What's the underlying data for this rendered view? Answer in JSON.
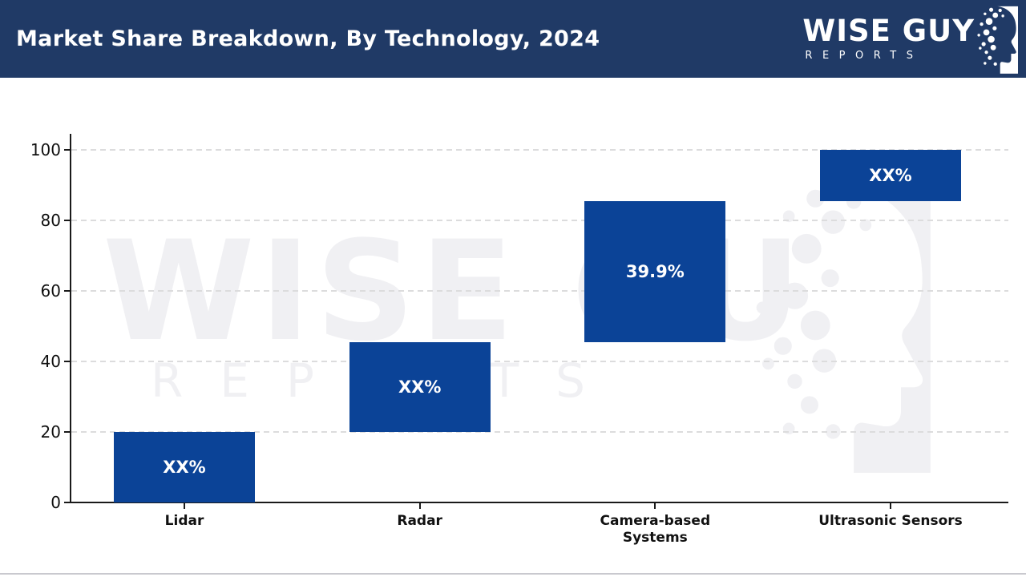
{
  "header": {
    "title": "Market Share Breakdown, By Technology, 2024"
  },
  "logo": {
    "line1": "WISE GUY",
    "line2": "REPORTS"
  },
  "watermark": {
    "line1": "WISE GU",
    "line2": "REPORTS"
  },
  "colors": {
    "header_bg": "#203a66",
    "bar": "#0b4397",
    "axis": "#1a1a1a",
    "gridline": "#dcdcdd",
    "bar_label": "#ffffff",
    "watermark": "#f0f0f3",
    "bottom_line": "#c9c9cf"
  },
  "chart_data": {
    "type": "bar",
    "subtype": "floating-waterfall",
    "title": "Market Share Breakdown, By Technology, 2024",
    "categories": [
      "Lidar",
      "Radar",
      "Camera-based Systems",
      "Ultrasonic Sensors"
    ],
    "segments": [
      {
        "category": "Lidar",
        "lines": [
          "Lidar"
        ],
        "start": 0,
        "end": 20,
        "value": 20,
        "label": "XX%"
      },
      {
        "category": "Radar",
        "lines": [
          "Radar"
        ],
        "start": 20,
        "end": 45.5,
        "value": 25.5,
        "label": "XX%"
      },
      {
        "category": "Camera-based Systems",
        "lines": [
          "Camera-based",
          "Systems"
        ],
        "start": 45.5,
        "end": 85.4,
        "value": 39.9,
        "label": "39.9%"
      },
      {
        "category": "Ultrasonic Sensors",
        "lines": [
          "Ultrasonic Sensors"
        ],
        "start": 85.4,
        "end": 100,
        "value": 14.6,
        "label": "XX%"
      }
    ],
    "xlabel": "",
    "ylabel": "",
    "ylim": [
      0,
      100
    ],
    "yticks": [
      0,
      20,
      40,
      60,
      80,
      100
    ],
    "grid": "horizontal-dashed",
    "legend": "none"
  }
}
